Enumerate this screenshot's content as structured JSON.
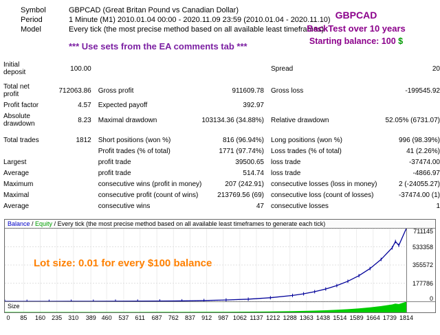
{
  "header": {
    "rows": [
      {
        "label": "Symbol",
        "value": "GBPCAD (Great Britan Pound vs Canadian Dollar)"
      },
      {
        "label": "Period",
        "value": "1 Minute (M1) 2010.01.04 00:00 - 2020.11.09 23:59 (2010.01.04 - 2020.11.10)"
      },
      {
        "label": "Model",
        "value": "Every tick (the most precise method based on all available least timeframes)"
      }
    ],
    "promo": {
      "title": "GBPCAD",
      "subtitle": "BackTest over 10 years",
      "balance_text": "Starting balance: 100 ",
      "currency": "$"
    },
    "note": "*** Use sets from the EA comments tab ***"
  },
  "colors": {
    "promo_purple": "#8b008b",
    "note_violet": "#7b1fa2",
    "overlay_orange": "#ff8000",
    "balance_line": "#000099",
    "equity_green": "#00a000",
    "size_green": "#00cc00"
  },
  "stats": {
    "rows": [
      [
        "Initial deposit",
        "100.00",
        "",
        "",
        "Spread",
        "20"
      ],
      [
        "Total net profit",
        "712063.86",
        "Gross profit",
        "911609.78",
        "Gross loss",
        "-199545.92"
      ],
      [
        "Profit factor",
        "4.57",
        "Expected payoff",
        "392.97",
        "",
        ""
      ],
      [
        "Absolute drawdown",
        "8.23",
        "Maximal drawdown",
        "103134.36 (34.88%)",
        "Relative drawdown",
        "52.05% (6731.07)"
      ],
      [
        "Total trades",
        "1812",
        "Short positions (won %)",
        "816 (96.94%)",
        "Long positions (won %)",
        "996 (98.39%)"
      ],
      [
        "",
        "",
        "Profit trades (% of total)",
        "1771 (97.74%)",
        "Loss trades (% of total)",
        "41 (2.26%)"
      ],
      [
        "Largest",
        "",
        "profit trade",
        "39500.65",
        "loss trade",
        "-37474.00"
      ],
      [
        "Average",
        "",
        "profit trade",
        "514.74",
        "loss trade",
        "-4866.97"
      ],
      [
        "Maximum",
        "",
        "consecutive wins (profit in money)",
        "207 (242.91)",
        "consecutive losses (loss in money)",
        "2 (-24055.27)"
      ],
      [
        "Maximal",
        "",
        "consecutive profit (count of wins)",
        "213769.56 (69)",
        "consecutive loss (count of losses)",
        "-37474.00 (1)"
      ],
      [
        "Average",
        "",
        "consecutive wins",
        "47",
        "consecutive losses",
        "1"
      ]
    ]
  },
  "chart": {
    "legend": [
      {
        "text": "Balance",
        "color": "#0000cc",
        "name": "legend-balance"
      },
      {
        "text": " / ",
        "name": "legend-separator"
      },
      {
        "text": "Equity",
        "color": "#00a000",
        "name": "legend-equity"
      },
      {
        "text": " / Every tick (the most precise method based on all available least timeframes to generate each tick)",
        "name": "legend-model"
      }
    ],
    "overlay": "Lot size: 0.01 for every $100 balance",
    "size_label": "Size"
  },
  "chart_data": {
    "type": "line",
    "title": "Balance / Equity / Every tick (the most precise method based on all available least timeframes to generate each tick)",
    "xlabel": "",
    "ylabel": "",
    "x_max": 1814,
    "y_max": 711145,
    "x_ticks": [
      0,
      85,
      160,
      235,
      310,
      389,
      460,
      537,
      611,
      687,
      762,
      837,
      912,
      987,
      1062,
      1137,
      1212,
      1288,
      1363,
      1438,
      1514,
      1589,
      1664,
      1739,
      1814
    ],
    "y_ticks": [
      711145,
      533358,
      355572,
      177786,
      0
    ],
    "grid": true,
    "legend_position": "top",
    "series": [
      {
        "name": "Balance",
        "color": "#000099",
        "x": [
          0,
          100,
          200,
          300,
          400,
          500,
          600,
          700,
          800,
          900,
          1000,
          1100,
          1200,
          1300,
          1350,
          1400,
          1450,
          1500,
          1550,
          1600,
          1650,
          1700,
          1750,
          1765,
          1780,
          1814
        ],
        "y": [
          100,
          163,
          266,
          434,
          708,
          1155,
          1884,
          3073,
          5012,
          8176,
          13335,
          21752,
          35480,
          57870,
          73900,
          94400,
          120600,
          154000,
          196700,
          251200,
          320900,
          409900,
          523500,
          585000,
          547500,
          712164
        ]
      }
    ],
    "size_series": {
      "name": "Size",
      "color": "#00cc00",
      "max": 71.22,
      "x": [
        0,
        100,
        200,
        300,
        400,
        500,
        600,
        700,
        800,
        900,
        1000,
        1100,
        1200,
        1300,
        1350,
        1400,
        1450,
        1500,
        1550,
        1600,
        1650,
        1700,
        1750,
        1765,
        1780,
        1814
      ],
      "y": [
        0.01,
        0.02,
        0.03,
        0.04,
        0.07,
        0.12,
        0.19,
        0.31,
        0.5,
        0.82,
        1.33,
        2.18,
        3.55,
        5.79,
        7.39,
        9.44,
        12.06,
        15.4,
        19.67,
        25.12,
        32.09,
        40.99,
        52.35,
        58.5,
        54.75,
        71.22
      ]
    }
  }
}
